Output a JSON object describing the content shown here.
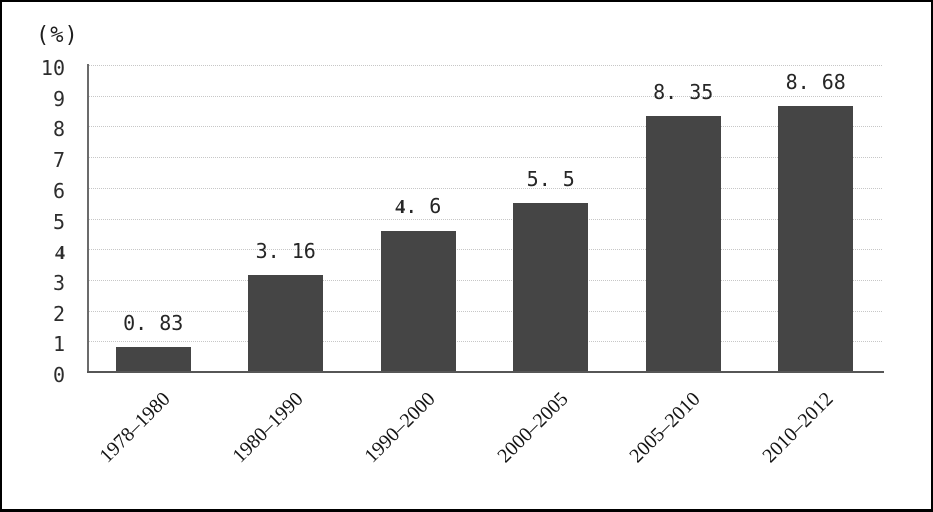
{
  "chart_data": {
    "type": "bar",
    "title": "",
    "unit_label": "(%)",
    "categories": [
      "1978–1980",
      "1980–1990",
      "1990–2000",
      "2000–2005",
      "2005–2010",
      "2010–2012"
    ],
    "values": [
      0.83,
      3.16,
      4.6,
      5.5,
      8.35,
      8.68
    ],
    "value_labels": [
      "0. 83",
      "3. 16",
      "4. 6",
      "5. 5",
      "8. 35",
      "8. 68"
    ],
    "y_ticks": [
      0,
      1,
      2,
      3,
      4,
      5,
      6,
      7,
      8,
      9,
      10
    ],
    "ylim": [
      0,
      10
    ],
    "xlabel": "",
    "ylabel": "(%)",
    "grid": true,
    "legend": false,
    "colors": {
      "bar": "#454545",
      "gridline": "#c7c7c7",
      "y_axis": "#6b6b6b",
      "x_axis": "#565656",
      "tick_text": "#2d2d2d",
      "value_text": "#262626",
      "category_text": "#141414",
      "frame_border": "#000000",
      "background": "#ffffff"
    }
  }
}
